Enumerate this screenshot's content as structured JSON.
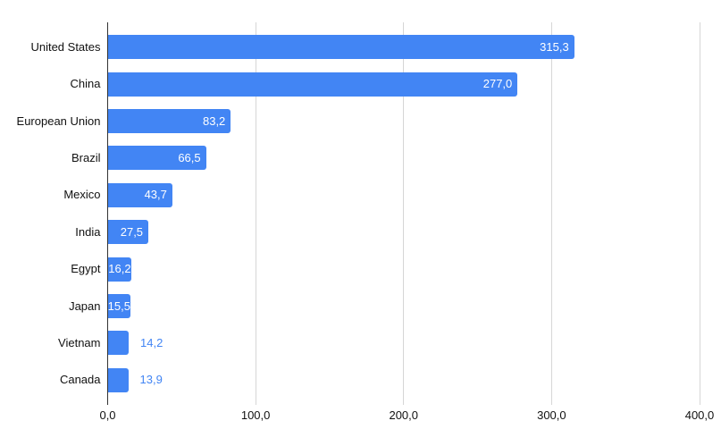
{
  "chart_data": {
    "type": "bar",
    "orientation": "horizontal",
    "title": "",
    "xlabel": "",
    "ylabel": "",
    "categories": [
      "United States",
      "China",
      "European Union",
      "Brazil",
      "Mexico",
      "India",
      "Egypt",
      "Japan",
      "Vietnam",
      "Canada"
    ],
    "values": [
      315.3,
      277.0,
      83.2,
      66.5,
      43.7,
      27.5,
      16.2,
      15.5,
      14.2,
      13.9
    ],
    "value_labels": [
      "315,3",
      "277,0",
      "83,2",
      "66,5",
      "43,7",
      "27,5",
      "16,2",
      "15,5",
      "14,2",
      "13,9"
    ],
    "value_label_placement": [
      "inside-right",
      "inside-right",
      "inside-right",
      "inside-right",
      "inside-right",
      "inside-right",
      "inside-center",
      "inside-center",
      "outside",
      "outside"
    ],
    "xlim": [
      0,
      400
    ],
    "x_ticks": [
      0,
      100,
      200,
      300,
      400
    ],
    "x_tick_labels": [
      "0,0",
      "100,0",
      "200,0",
      "300,0",
      "400,0"
    ],
    "grid": true,
    "legend": "none",
    "colors": {
      "bar": "#4285F4",
      "value_label_inside": "#ffffff",
      "value_label_outside": "#4285F4",
      "gridline": "#d6d6d6",
      "axis_line": "#333333",
      "category_label": "#111111",
      "tick_label": "#111111",
      "background": "#ffffff"
    }
  }
}
